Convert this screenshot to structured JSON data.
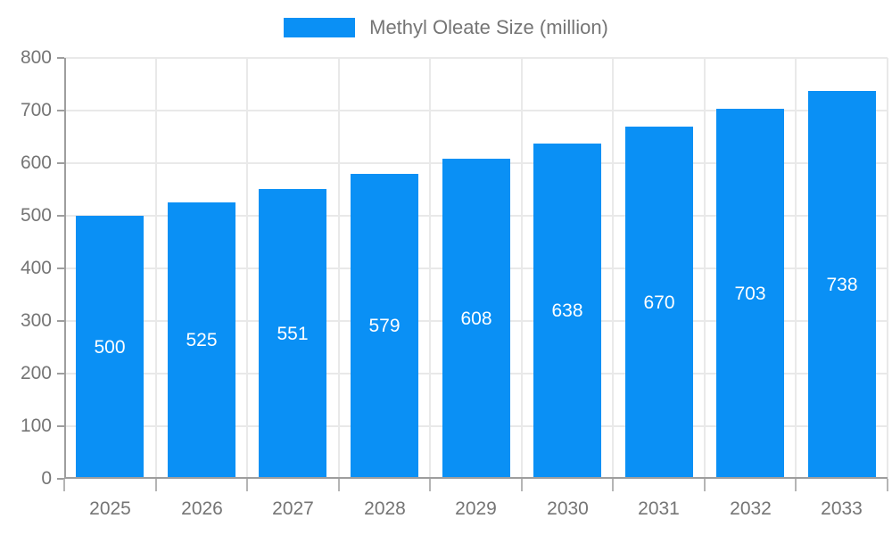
{
  "chart_data": {
    "type": "bar",
    "categories": [
      "2025",
      "2026",
      "2027",
      "2028",
      "2029",
      "2030",
      "2031",
      "2032",
      "2033"
    ],
    "values": [
      500,
      525,
      551,
      579,
      608,
      638,
      670,
      703,
      738
    ],
    "title": "",
    "xlabel": "",
    "ylabel": "",
    "ylim": [
      0,
      800
    ],
    "ytick_step": 100,
    "grid": true,
    "legend_position": "top",
    "legend_label": "Methyl Oleate Size (million)",
    "value_labels_position": "center",
    "colors": {
      "bar": "#0a90f5",
      "value_label": "#ffffff",
      "axis_label": "#757575",
      "gridline": "#e9e9e9",
      "axis_line": "#9e9e9e"
    }
  }
}
